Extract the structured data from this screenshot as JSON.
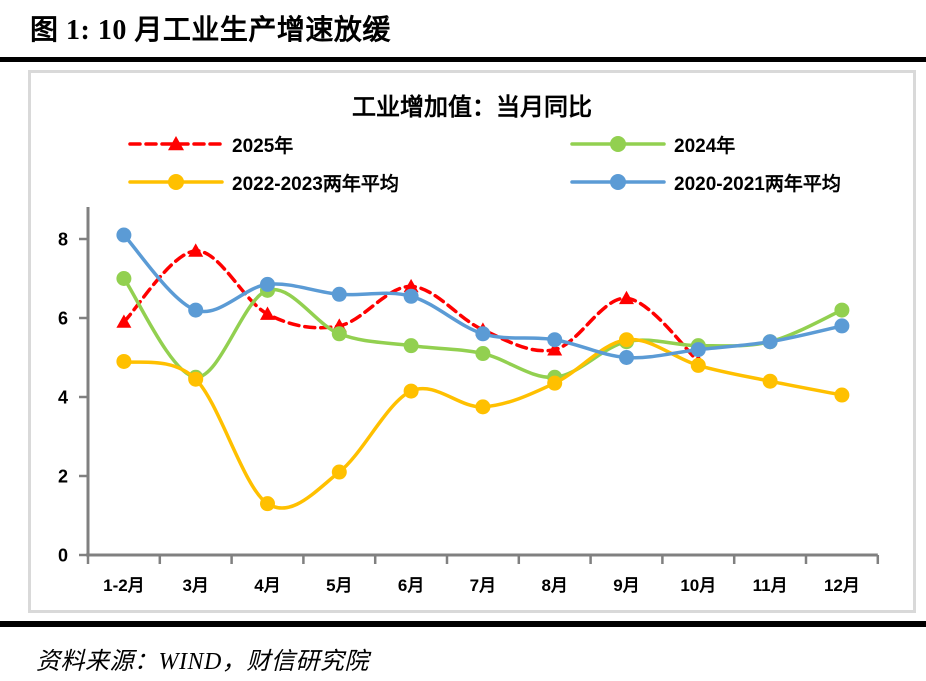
{
  "page": {
    "title": "图 1: 10 月工业生产增速放缓",
    "source_note": "资料来源：WIND，财信研究院"
  },
  "chart_data": {
    "type": "line",
    "title": "工业增加值：当月同比",
    "categories": [
      "1-2月",
      "3月",
      "4月",
      "5月",
      "6月",
      "7月",
      "8月",
      "9月",
      "10月",
      "11月",
      "12月"
    ],
    "series": [
      {
        "name": "2025年",
        "color": "#FF0000",
        "dashed": true,
        "marker": "triangle",
        "values": [
          5.9,
          7.7,
          6.1,
          5.8,
          6.8,
          5.7,
          5.2,
          6.5,
          4.9,
          null,
          null
        ]
      },
      {
        "name": "2024年",
        "color": "#92D050",
        "dashed": false,
        "marker": "circle",
        "values": [
          7.0,
          4.5,
          6.7,
          5.6,
          5.3,
          5.1,
          4.5,
          5.4,
          5.3,
          5.4,
          6.2
        ]
      },
      {
        "name": "2022-2023两年平均",
        "color": "#FFC000",
        "dashed": false,
        "marker": "circle",
        "values": [
          4.9,
          4.45,
          1.3,
          2.1,
          4.15,
          3.75,
          4.35,
          5.45,
          4.8,
          4.4,
          4.05
        ]
      },
      {
        "name": "2020-2021两年平均",
        "color": "#5B9BD5",
        "dashed": false,
        "marker": "circle",
        "values": [
          8.1,
          6.2,
          6.85,
          6.6,
          6.55,
          5.6,
          5.45,
          5.0,
          5.2,
          5.4,
          5.8
        ]
      }
    ],
    "y_ticks": [
      0,
      2,
      4,
      6,
      8
    ],
    "ylim": [
      0,
      8.8
    ],
    "xlabel": "",
    "ylabel": "",
    "grid": false,
    "legend_position": "top",
    "axis_color": "#808080",
    "border_color": "#D9D9D9",
    "text_color": "#000000"
  }
}
